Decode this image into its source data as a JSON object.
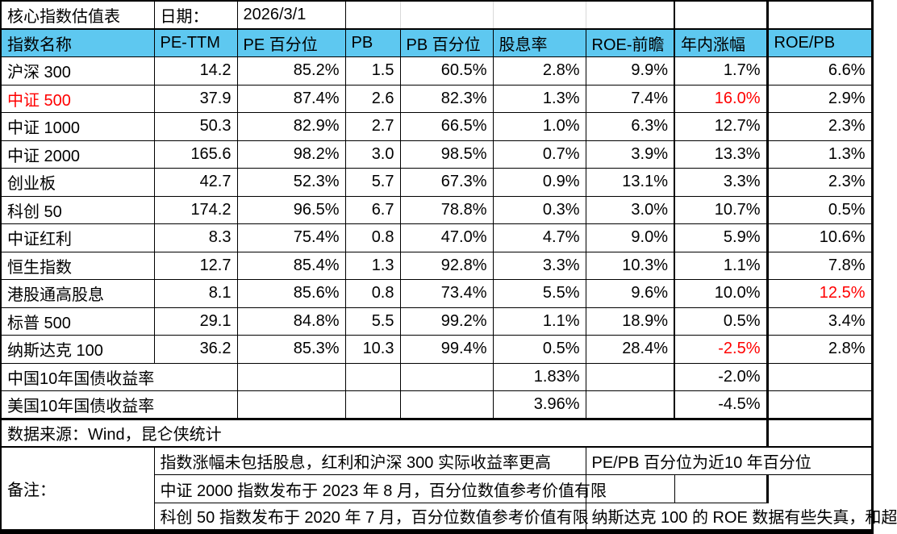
{
  "title_row": {
    "title": "核心指数估值表",
    "date_label": "日期：",
    "date_value": "2026/3/1"
  },
  "table": {
    "headers": [
      "指数名称",
      "PE-TTM",
      "PE 百分位",
      "PB",
      "PB 百分位",
      "股息率",
      "ROE-前瞻",
      "年内涨幅",
      "ROE/PB"
    ],
    "rows": [
      {
        "name": "沪深 300",
        "name_red": false,
        "cells": [
          "14.2",
          "85.2%",
          "1.5",
          "60.5%",
          "2.8%",
          "9.9%",
          "1.7%",
          "6.6%"
        ],
        "red_cells": []
      },
      {
        "name": "中证 500",
        "name_red": true,
        "cells": [
          "37.9",
          "87.4%",
          "2.6",
          "82.3%",
          "1.3%",
          "7.4%",
          "16.0%",
          "2.9%"
        ],
        "red_cells": [
          6
        ]
      },
      {
        "name": "中证 1000",
        "name_red": false,
        "cells": [
          "50.3",
          "82.9%",
          "2.7",
          "66.5%",
          "1.0%",
          "6.3%",
          "12.7%",
          "2.3%"
        ],
        "red_cells": []
      },
      {
        "name": "中证 2000",
        "name_red": false,
        "cells": [
          "165.6",
          "98.2%",
          "3.0",
          "98.5%",
          "0.7%",
          "3.9%",
          "13.3%",
          "1.3%"
        ],
        "red_cells": []
      },
      {
        "name": "创业板",
        "name_red": false,
        "cells": [
          "42.7",
          "52.3%",
          "5.7",
          "67.3%",
          "0.9%",
          "13.1%",
          "3.3%",
          "2.3%"
        ],
        "red_cells": []
      },
      {
        "name": "科创 50",
        "name_red": false,
        "cells": [
          "174.2",
          "96.5%",
          "6.7",
          "78.8%",
          "0.3%",
          "3.0%",
          "10.7%",
          "0.5%"
        ],
        "red_cells": []
      },
      {
        "name": "中证红利",
        "name_red": false,
        "cells": [
          "8.3",
          "75.4%",
          "0.8",
          "47.0%",
          "4.7%",
          "9.0%",
          "5.9%",
          "10.6%"
        ],
        "red_cells": []
      },
      {
        "name": "恒生指数",
        "name_red": false,
        "cells": [
          "12.7",
          "85.4%",
          "1.3",
          "92.8%",
          "3.3%",
          "10.3%",
          "1.1%",
          "7.8%"
        ],
        "red_cells": []
      },
      {
        "name": "港股通高股息",
        "name_red": false,
        "cells": [
          "8.1",
          "85.6%",
          "0.8",
          "73.4%",
          "5.5%",
          "9.6%",
          "10.0%",
          "12.5%"
        ],
        "red_cells": [
          7
        ]
      },
      {
        "name": "标普 500",
        "name_red": false,
        "cells": [
          "29.1",
          "84.8%",
          "5.5",
          "99.2%",
          "1.1%",
          "18.9%",
          "0.5%",
          "3.4%"
        ],
        "red_cells": []
      },
      {
        "name": "纳斯达克 100",
        "name_red": false,
        "cells": [
          "36.2",
          "85.3%",
          "10.3",
          "99.4%",
          "0.5%",
          "28.4%",
          "-2.5%",
          "2.8%"
        ],
        "red_cells": [
          6
        ]
      }
    ],
    "bond_rows": [
      {
        "name": "中国10年国债收益率",
        "dividend_yield": "1.83%",
        "ytd_change": "-2.0%"
      },
      {
        "name": "美国10年国债收益率",
        "dividend_yield": "3.96%",
        "ytd_change": "-4.5%"
      }
    ]
  },
  "source_row": {
    "text": "数据来源：Wind，昆仑侠统计"
  },
  "notes": {
    "label": "备注：",
    "rows": [
      {
        "left": "指数涨幅未包括股息，红利和沪深 300 实际收益率更高",
        "right": "PE/PB 百分位为近10 年百分位"
      },
      {
        "left": "中证 2000 指数发布于 2023 年 8 月，百分位数值参考价值有限",
        "right": ""
      },
      {
        "left": "科创 50 指数发布于 2020 年 7 月，百分位数值参考价值有限",
        "right": "纳斯达克 100 的 ROE 数据有些失真，和超"
      }
    ]
  },
  "colors": {
    "header_bg": "#5EC8F0",
    "red_text": "#FF0000",
    "gridline": "#D9D9D9",
    "border": "#000000"
  }
}
